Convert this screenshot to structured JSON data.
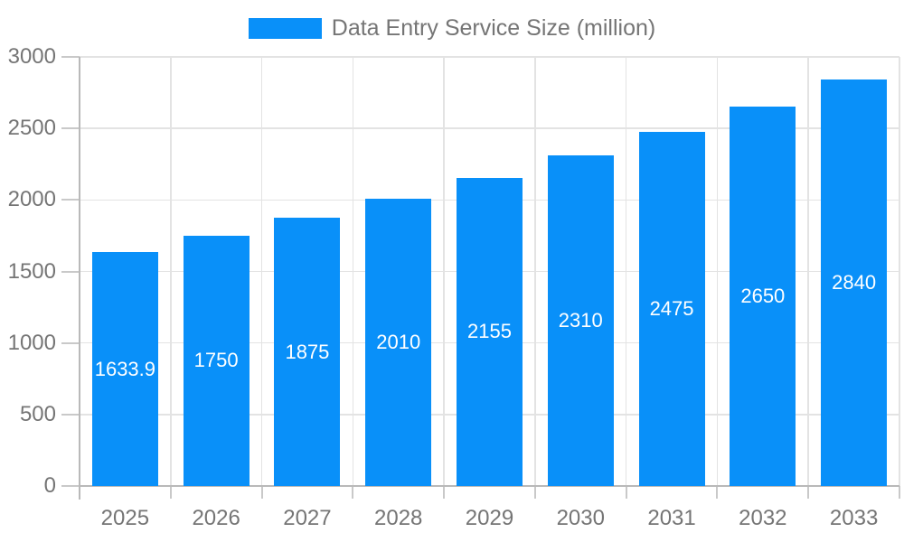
{
  "legend": {
    "label": "Data Entry Service Size (million)"
  },
  "chart_data": {
    "type": "bar",
    "title": "Data Entry Service Size (million)",
    "xlabel": "",
    "ylabel": "",
    "categories": [
      "2025",
      "2026",
      "2027",
      "2028",
      "2029",
      "2030",
      "2031",
      "2032",
      "2033"
    ],
    "values": [
      1633.9,
      1750,
      1875,
      2010,
      2155,
      2310,
      2475,
      2650,
      2840
    ],
    "value_labels": [
      "1633.9",
      "1750",
      "1875",
      "2010",
      "2155",
      "2310",
      "2475",
      "2650",
      "2840"
    ],
    "ylim": [
      0,
      3000
    ],
    "ytick_interval": 500,
    "yticks": [
      0,
      500,
      1000,
      1500,
      2000,
      2500,
      3000
    ],
    "grid": true,
    "legend_position": "top",
    "colors": {
      "bar": "#0990f9",
      "gridline": "#e3e3e3",
      "axis_line": "#b9b9b9",
      "tick": "#c9c9c9",
      "axis_text": "#757575",
      "bar_label_text": "#ffffff",
      "background": "#ffffff"
    }
  }
}
